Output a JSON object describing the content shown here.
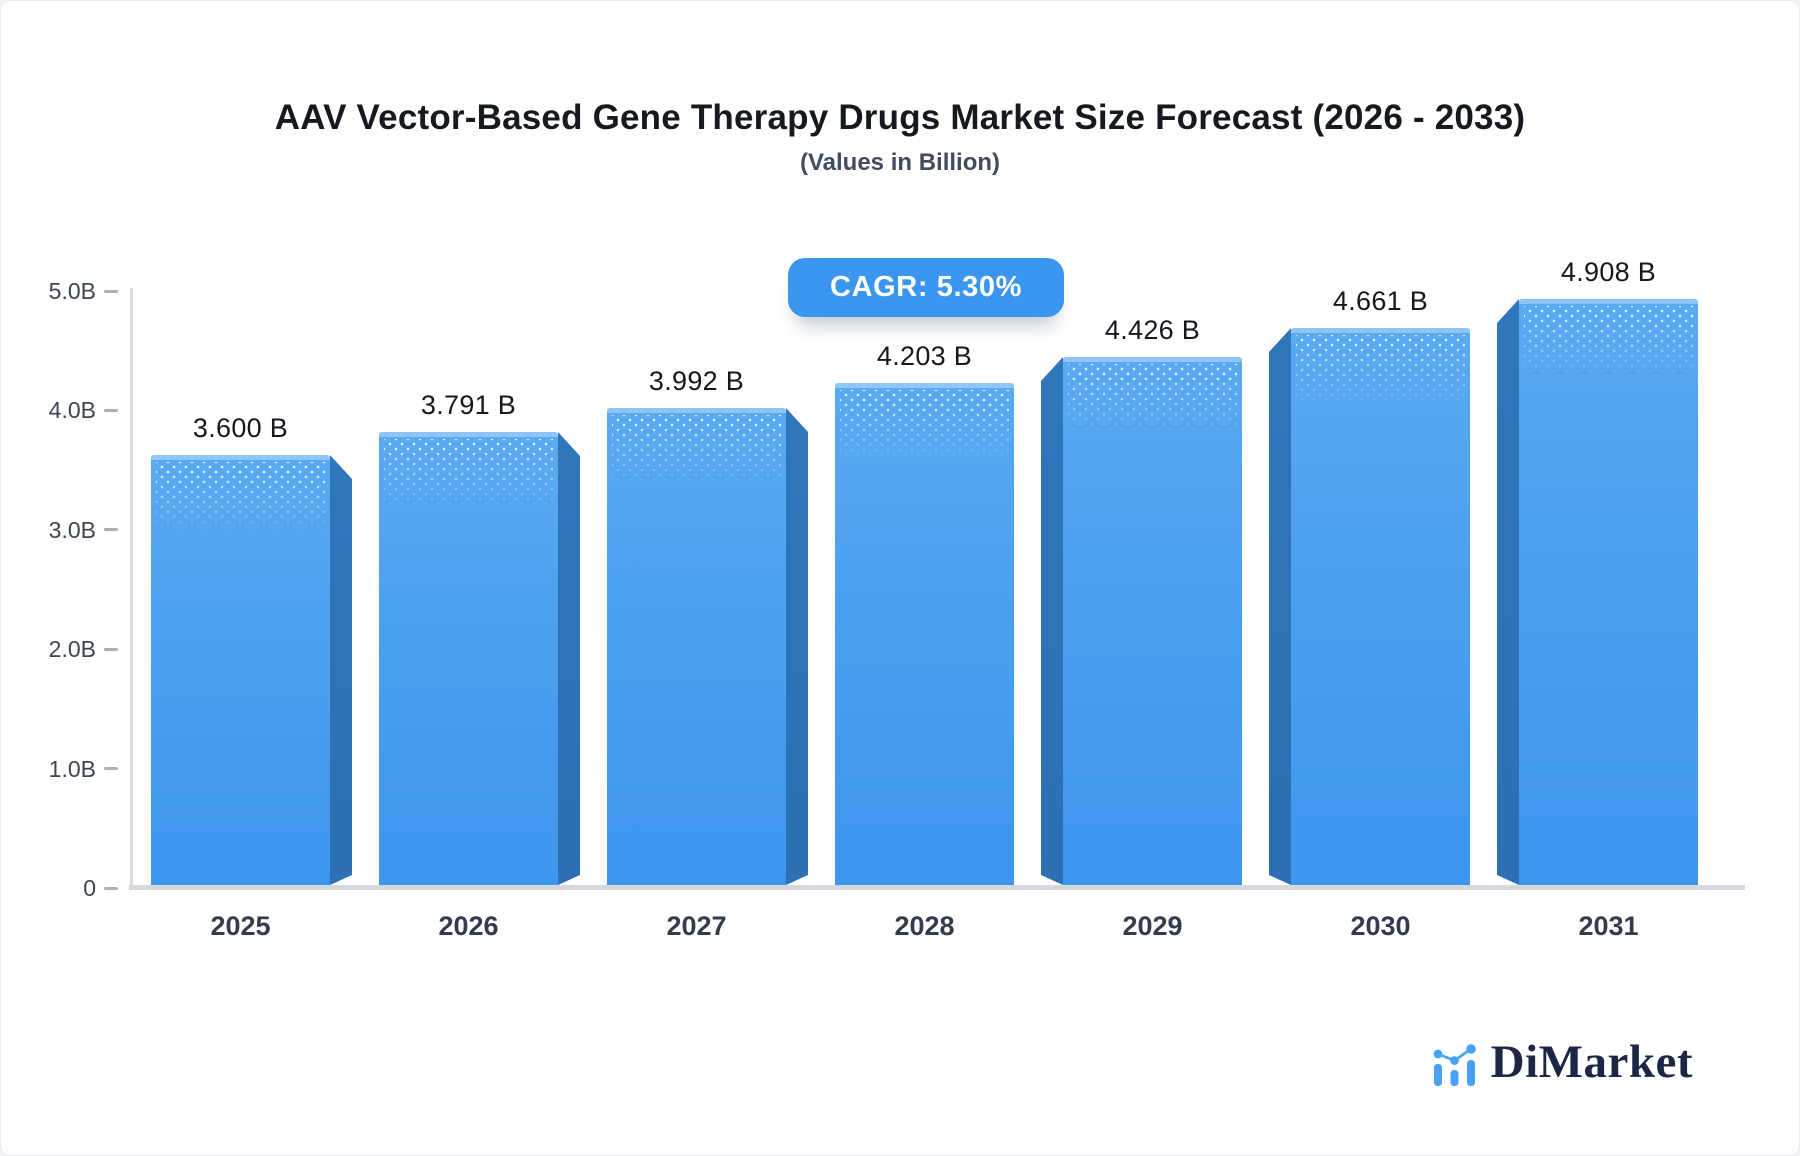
{
  "title": "AAV Vector-Based Gene Therapy Drugs Market Size Forecast (2026 - 2033)",
  "subtitle": "(Values in Billion)",
  "badge": {
    "label": "CAGR: 5.30%"
  },
  "chart_data": {
    "type": "bar",
    "title": "AAV Vector-Based Gene Therapy Drugs Market Size Forecast (2026 - 2033)",
    "subtitle": "(Values in Billion)",
    "categories": [
      "2025",
      "2026",
      "2027",
      "2028",
      "2029",
      "2030",
      "2031"
    ],
    "values": [
      3.6,
      3.791,
      3.992,
      4.203,
      4.426,
      4.661,
      4.908
    ],
    "value_labels": [
      "3.600 B",
      "3.791 B",
      "3.992 B",
      "4.203 B",
      "4.426 B",
      "4.661 B",
      "4.908 B"
    ],
    "yticks": [
      "0",
      "1.0B",
      "2.0B",
      "3.0B",
      "4.0B",
      "5.0B"
    ],
    "ylim": [
      0,
      5
    ],
    "xlabel": "",
    "ylabel": "",
    "grid": false,
    "legend": false,
    "annotation": "CAGR: 5.30%"
  },
  "colors": {
    "bar_top": "#5aaaf1",
    "bar_bottom": "#3e96ee",
    "bar_side": "#2f76bb",
    "badge_bg": "#3b96ef",
    "axis_line": "#d9dde3",
    "tick_label": "#3d4554",
    "x_label": "#333c4d",
    "title": "#16191f",
    "logo_blue": "#4aa2f6",
    "logo_navy": "#1d2644"
  },
  "logo": {
    "text": "DiMarket",
    "icon": "mini-bar-chart-icon"
  }
}
